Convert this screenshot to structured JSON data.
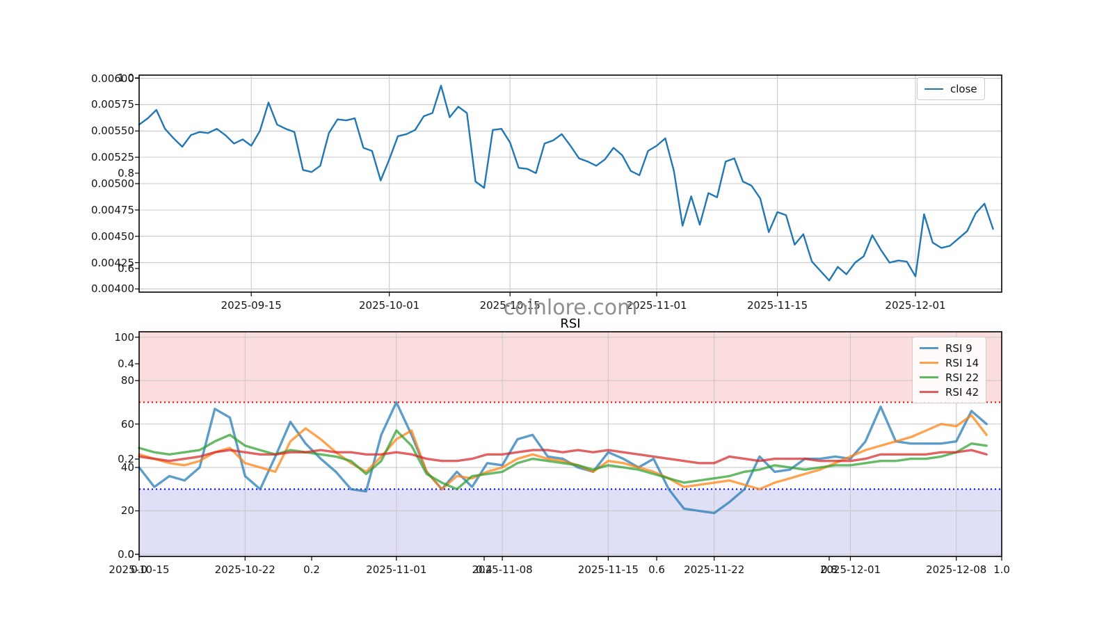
{
  "watermark": "coinlore.com",
  "background_color": "#ffffff",
  "overlay_axis": {
    "x_ticks": [
      "0.0",
      "0.2",
      "0.4",
      "0.6",
      "0.8",
      "1.0"
    ],
    "y_ticks": [
      "1.0",
      "0.8",
      "0.6",
      "0.4",
      "0.2",
      "0.0"
    ]
  },
  "chart_data": [
    {
      "type": "line",
      "title": "",
      "grid": true,
      "legend_position": "upper right",
      "x_range": [
        "2025-09-02",
        "2025-12-11"
      ],
      "y_range": [
        0.00397,
        0.00603
      ],
      "x_ticks": [
        "2025-09-15",
        "2025-10-01",
        "2025-10-15",
        "2025-11-01",
        "2025-11-15",
        "2025-12-01"
      ],
      "y_ticks": [
        "0.00400",
        "0.00425",
        "0.00450",
        "0.00475",
        "0.00500",
        "0.00525",
        "0.00550",
        "0.00575",
        "0.00600"
      ],
      "series": [
        {
          "name": "close",
          "color": "#1f77b4",
          "opacity": 1,
          "width": 2.4,
          "dates": [
            "2025-09-02",
            "2025-09-03",
            "2025-09-04",
            "2025-09-05",
            "2025-09-06",
            "2025-09-07",
            "2025-09-08",
            "2025-09-09",
            "2025-09-10",
            "2025-09-11",
            "2025-09-12",
            "2025-09-13",
            "2025-09-14",
            "2025-09-15",
            "2025-09-16",
            "2025-09-17",
            "2025-09-18",
            "2025-09-19",
            "2025-09-20",
            "2025-09-21",
            "2025-09-22",
            "2025-09-23",
            "2025-09-24",
            "2025-09-25",
            "2025-09-26",
            "2025-09-27",
            "2025-09-28",
            "2025-09-29",
            "2025-09-30",
            "2025-10-01",
            "2025-10-02",
            "2025-10-03",
            "2025-10-04",
            "2025-10-05",
            "2025-10-06",
            "2025-10-07",
            "2025-10-08",
            "2025-10-09",
            "2025-10-10",
            "2025-10-11",
            "2025-10-12",
            "2025-10-13",
            "2025-10-14",
            "2025-10-15",
            "2025-10-16",
            "2025-10-17",
            "2025-10-18",
            "2025-10-19",
            "2025-10-20",
            "2025-10-21",
            "2025-10-22",
            "2025-10-23",
            "2025-10-24",
            "2025-10-25",
            "2025-10-26",
            "2025-10-27",
            "2025-10-28",
            "2025-10-29",
            "2025-10-30",
            "2025-10-31",
            "2025-11-01",
            "2025-11-02",
            "2025-11-03",
            "2025-11-04",
            "2025-11-05",
            "2025-11-06",
            "2025-11-07",
            "2025-11-08",
            "2025-11-09",
            "2025-11-10",
            "2025-11-11",
            "2025-11-12",
            "2025-11-13",
            "2025-11-14",
            "2025-11-15",
            "2025-11-16",
            "2025-11-17",
            "2025-11-18",
            "2025-11-19",
            "2025-11-20",
            "2025-11-21",
            "2025-11-22",
            "2025-11-23",
            "2025-11-24",
            "2025-11-25",
            "2025-11-26",
            "2025-11-27",
            "2025-11-28",
            "2025-11-29",
            "2025-11-30",
            "2025-12-01",
            "2025-12-02",
            "2025-12-03",
            "2025-12-04",
            "2025-12-05",
            "2025-12-06",
            "2025-12-07",
            "2025-12-08",
            "2025-12-09",
            "2025-12-10"
          ],
          "values": [
            0.00556,
            0.00562,
            0.0057,
            0.00552,
            0.00543,
            0.00535,
            0.00546,
            0.00549,
            0.00548,
            0.00552,
            0.00546,
            0.00538,
            0.00542,
            0.00536,
            0.0055,
            0.00577,
            0.00556,
            0.00552,
            0.00549,
            0.00513,
            0.00511,
            0.00517,
            0.00548,
            0.00561,
            0.0056,
            0.00562,
            0.00534,
            0.00531,
            0.00503,
            0.00523,
            0.00545,
            0.00547,
            0.00551,
            0.00564,
            0.00567,
            0.00593,
            0.00563,
            0.00573,
            0.00567,
            0.00502,
            0.00496,
            0.00551,
            0.00552,
            0.00539,
            0.00515,
            0.00514,
            0.0051,
            0.00538,
            0.00541,
            0.00547,
            0.00536,
            0.00524,
            0.00521,
            0.00517,
            0.00523,
            0.00534,
            0.00527,
            0.00512,
            0.00508,
            0.00531,
            0.00536,
            0.00543,
            0.00512,
            0.0046,
            0.00488,
            0.00461,
            0.00491,
            0.00487,
            0.00521,
            0.00524,
            0.00502,
            0.00498,
            0.00486,
            0.00454,
            0.00473,
            0.0047,
            0.00442,
            0.00452,
            0.00426,
            0.00417,
            0.00408,
            0.00421,
            0.00414,
            0.00425,
            0.00431,
            0.00451,
            0.00437,
            0.00425,
            0.00427,
            0.00426,
            0.00412,
            0.00471,
            0.00444,
            0.00439,
            0.00441,
            0.00448,
            0.00455,
            0.00472,
            0.00481,
            0.00457
          ]
        }
      ]
    },
    {
      "type": "line",
      "title": "RSI",
      "grid": true,
      "legend_position": "upper right",
      "x_range": [
        "2025-10-15",
        "2025-12-11"
      ],
      "y_range": [
        -1,
        102.5
      ],
      "x_ticks": [
        "2025-10-15",
        "2025-10-22",
        "2025-11-01",
        "2025-11-08",
        "2025-11-15",
        "2025-11-22",
        "2025-12-01",
        "2025-12-08"
      ],
      "y_ticks": [
        "0",
        "20",
        "40",
        "60",
        "80",
        "100"
      ],
      "bands": [
        {
          "from": 70,
          "to": 102.5,
          "color": "#fbdddd",
          "meaning": "overbought zone"
        },
        {
          "from": -1,
          "to": 30,
          "color": "#dfdff5",
          "meaning": "oversold zone"
        }
      ],
      "lines": [
        {
          "value": 70,
          "color": "#ff0000",
          "style": "dotted"
        },
        {
          "value": 30,
          "color": "#0000ff",
          "style": "dotted"
        }
      ],
      "dates": [
        "2025-10-15",
        "2025-10-16",
        "2025-10-17",
        "2025-10-18",
        "2025-10-19",
        "2025-10-20",
        "2025-10-21",
        "2025-10-22",
        "2025-10-23",
        "2025-10-24",
        "2025-10-25",
        "2025-10-26",
        "2025-10-27",
        "2025-10-28",
        "2025-10-29",
        "2025-10-30",
        "2025-10-31",
        "2025-11-01",
        "2025-11-02",
        "2025-11-03",
        "2025-11-04",
        "2025-11-05",
        "2025-11-06",
        "2025-11-07",
        "2025-11-08",
        "2025-11-09",
        "2025-11-10",
        "2025-11-11",
        "2025-11-12",
        "2025-11-13",
        "2025-11-14",
        "2025-11-15",
        "2025-11-16",
        "2025-11-17",
        "2025-11-18",
        "2025-11-19",
        "2025-11-20",
        "2025-11-21",
        "2025-11-22",
        "2025-11-23",
        "2025-11-24",
        "2025-11-25",
        "2025-11-26",
        "2025-11-27",
        "2025-11-28",
        "2025-11-29",
        "2025-11-30",
        "2025-12-01",
        "2025-12-02",
        "2025-12-03",
        "2025-12-04",
        "2025-12-05",
        "2025-12-06",
        "2025-12-07",
        "2025-12-08",
        "2025-12-09",
        "2025-12-10"
      ],
      "series": [
        {
          "name": "RSI 9",
          "color": "#1f77b4",
          "opacity": 0.72,
          "width": 3.4,
          "values": [
            40,
            31,
            36,
            34,
            40,
            67,
            63,
            36,
            30,
            45,
            61,
            51,
            44,
            38,
            30,
            29,
            55,
            70,
            55,
            38,
            30,
            38,
            31,
            42,
            41,
            53,
            55,
            45,
            44,
            40,
            38,
            47,
            44,
            40,
            44,
            30,
            21,
            20,
            19,
            24,
            30,
            45,
            38,
            39,
            44,
            44,
            45,
            44,
            52,
            68,
            52,
            51,
            51,
            51,
            52,
            66,
            60
          ]
        },
        {
          "name": "RSI 14",
          "color": "#ff7f0e",
          "opacity": 0.72,
          "width": 3.4,
          "values": [
            46,
            44,
            42,
            41,
            43,
            47,
            49,
            42,
            40,
            38,
            52,
            58,
            53,
            47,
            42,
            38,
            45,
            53,
            57,
            38,
            30,
            36,
            35,
            38,
            40,
            44,
            46,
            44,
            43,
            41,
            38,
            43,
            42,
            40,
            38,
            35,
            31,
            32,
            33,
            34,
            32,
            30,
            33,
            35,
            37,
            39,
            42,
            45,
            48,
            50,
            52,
            54,
            57,
            60,
            59,
            64,
            55
          ]
        },
        {
          "name": "RSI 22",
          "color": "#2ca02c",
          "opacity": 0.72,
          "width": 3.4,
          "values": [
            49,
            47,
            46,
            47,
            48,
            52,
            55,
            50,
            48,
            46,
            48,
            47,
            46,
            45,
            43,
            37,
            43,
            57,
            50,
            37,
            33,
            30,
            36,
            37,
            38,
            42,
            44,
            43,
            42,
            41,
            39,
            41,
            40,
            39,
            37,
            35,
            33,
            34,
            35,
            36,
            38,
            39,
            41,
            40,
            39,
            40,
            41,
            41,
            42,
            43,
            43,
            44,
            44,
            45,
            47,
            51,
            50
          ]
        },
        {
          "name": "RSI 42",
          "color": "#d62728",
          "opacity": 0.72,
          "width": 3.4,
          "values": [
            45,
            44,
            43,
            44,
            45,
            47,
            48,
            47,
            46,
            46,
            47,
            47,
            48,
            47,
            47,
            46,
            46,
            47,
            46,
            44,
            43,
            43,
            44,
            46,
            46,
            47,
            48,
            48,
            47,
            48,
            47,
            48,
            47,
            46,
            45,
            44,
            43,
            42,
            42,
            45,
            44,
            43,
            44,
            44,
            44,
            43,
            43,
            43,
            44,
            46,
            46,
            46,
            46,
            47,
            47,
            48,
            46
          ]
        }
      ]
    }
  ]
}
